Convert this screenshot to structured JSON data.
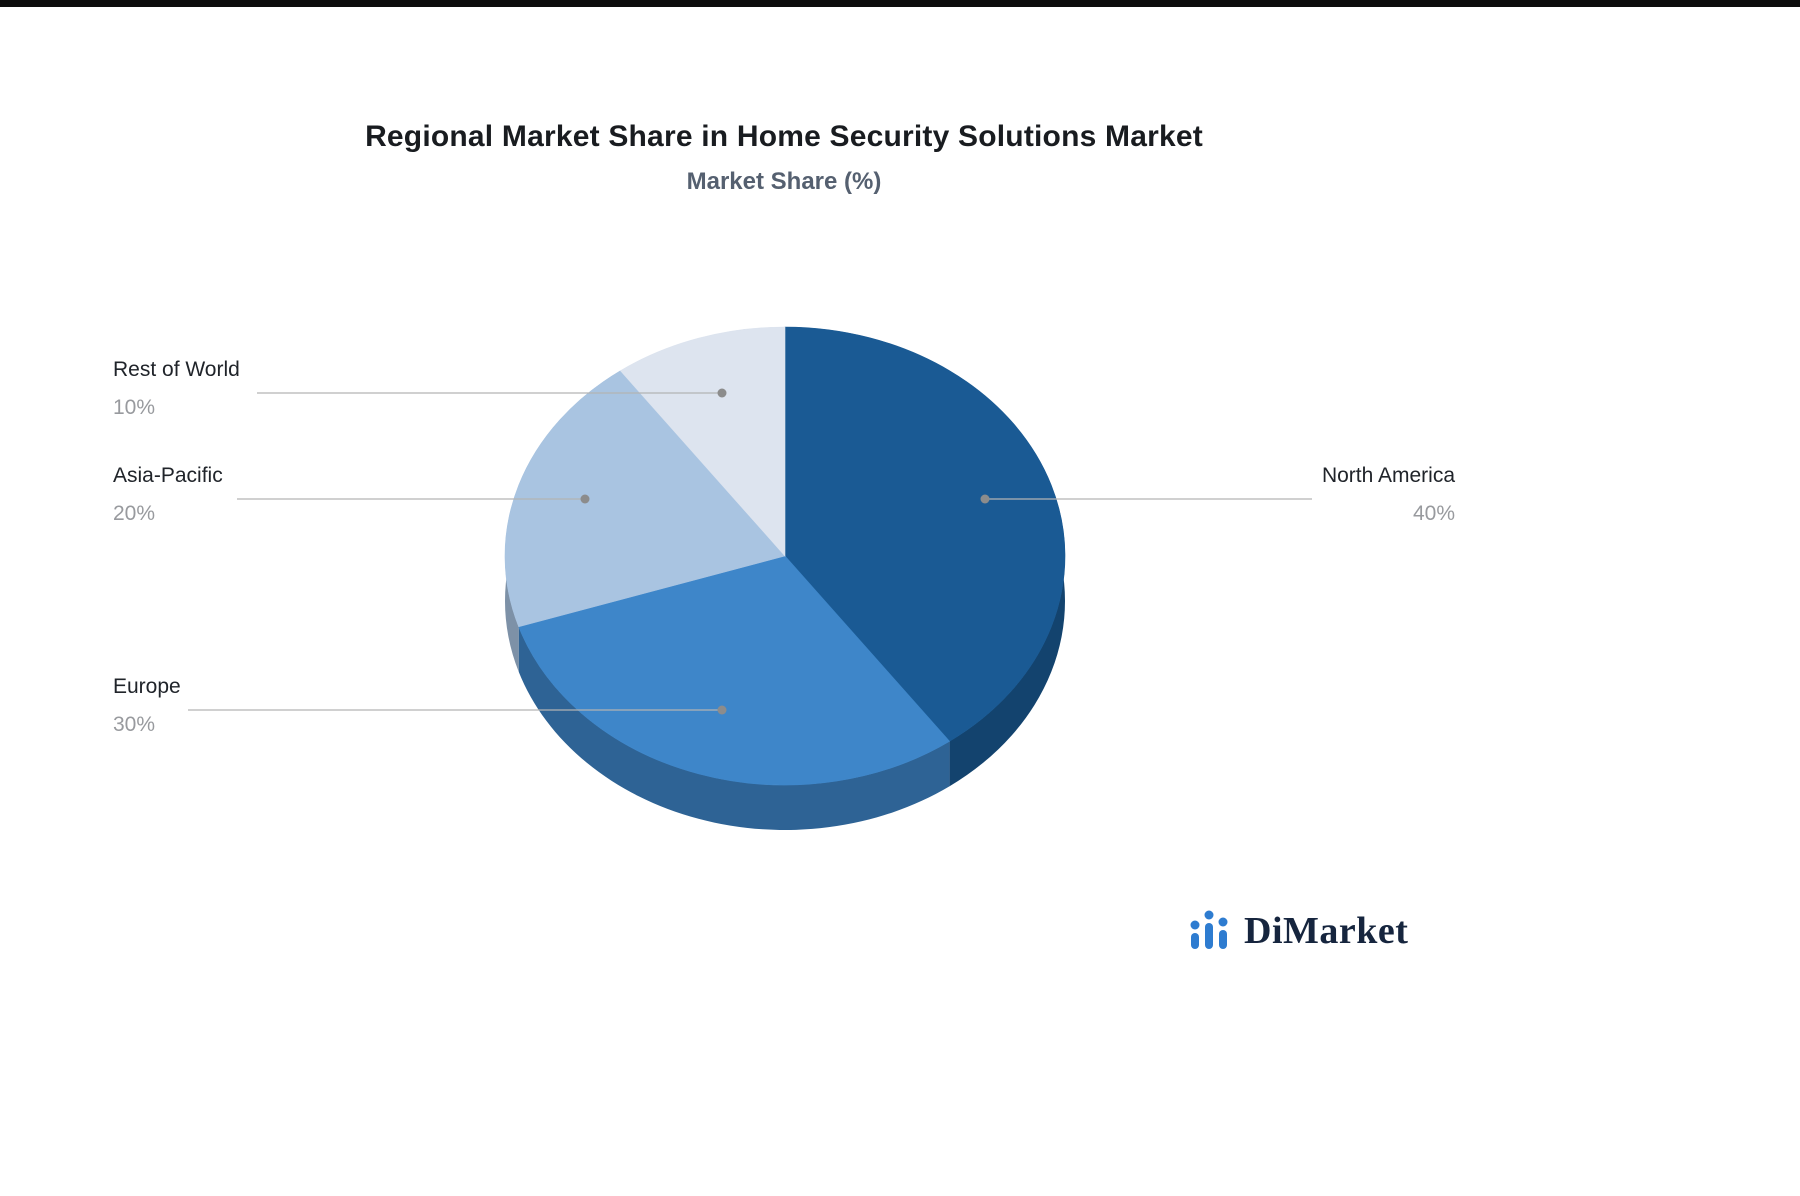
{
  "page": {
    "background": "#ffffff",
    "top_border_color": "#0d0d0d"
  },
  "chart": {
    "title": "Regional Market Share in Home Security Solutions Market",
    "subtitle": "Market Share (%)"
  },
  "chart_data": {
    "type": "pie",
    "style": "3d",
    "title": "Regional Market Share in Home Security Solutions Market",
    "subtitle": "Market Share (%)",
    "unit": "%",
    "start_angle": "top",
    "direction": "clockwise",
    "legend_position": "callout-labels",
    "labels": [
      "North America",
      "Europe",
      "Asia-Pacific",
      "Rest of World"
    ],
    "values": [
      40,
      30,
      20,
      10
    ],
    "colors": [
      "#1a5a94",
      "#3e86c9",
      "#a9c4e1",
      "#dde4ef"
    ],
    "slices": [
      {
        "label": "North America",
        "value": 40,
        "display_value": "40%",
        "color": "#1a5a94",
        "label_side": "right"
      },
      {
        "label": "Europe",
        "value": 30,
        "display_value": "30%",
        "color": "#3e86c9",
        "label_side": "left"
      },
      {
        "label": "Asia-Pacific",
        "value": 20,
        "display_value": "20%",
        "color": "#a9c4e1",
        "label_side": "left"
      },
      {
        "label": "Rest of World",
        "value": 10,
        "display_value": "10%",
        "color": "#dde4ef",
        "label_side": "left"
      }
    ]
  },
  "branding": {
    "name": "DiMarket",
    "icon": "bar-chart-icon",
    "icon_color": "#2e7cd0"
  }
}
